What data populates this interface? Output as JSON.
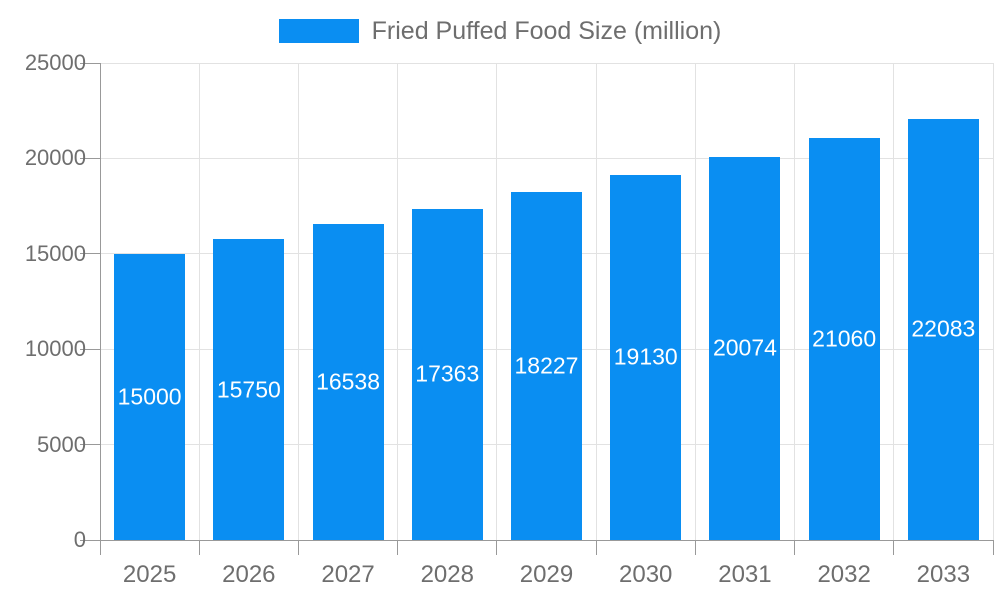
{
  "chart_data": {
    "type": "bar",
    "title": "Fried Puffed Food Size (million)",
    "legend_label": "Fried Puffed Food Size (million)",
    "legend_position": "top-center",
    "categories": [
      "2025",
      "2026",
      "2027",
      "2028",
      "2029",
      "2030",
      "2031",
      "2032",
      "2033"
    ],
    "series": [
      {
        "name": "Fried Puffed Food Size (million)",
        "values": [
          15000,
          15750,
          16538,
          17363,
          18227,
          19130,
          20074,
          21060,
          22083
        ]
      }
    ],
    "value_labels_shown": true,
    "xlabel": "",
    "ylabel": "",
    "ylim": [
      0,
      25000
    ],
    "yticks": [
      0,
      5000,
      10000,
      15000,
      20000,
      25000
    ],
    "grid": true,
    "colors": {
      "bar": "#0A8EF2",
      "value_label": "#FFFFFF",
      "axis": "#999999",
      "grid": "#E2E2E2",
      "tick_text": "#6E6E6E",
      "legend_text": "#6E6E6E",
      "background": "#FFFFFF"
    }
  }
}
